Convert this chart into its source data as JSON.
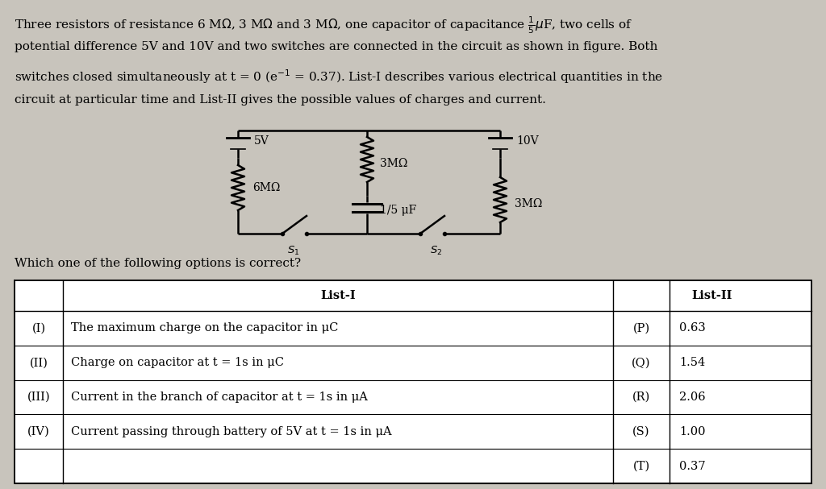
{
  "bg_color": "#c8c4bc",
  "text_color": "#000000",
  "question": "Which one of the following options is correct?",
  "table_header_list1": "List-I",
  "table_header_list2": "List-II",
  "table_rows": [
    {
      "roman": "(I)",
      "desc": "The maximum charge on the capacitor in μC",
      "letter": "(P)",
      "val": "0.63"
    },
    {
      "roman": "(II)",
      "desc": "Charge on capacitor at t = 1s in μC",
      "letter": "(Q)",
      "val": "1.54"
    },
    {
      "roman": "(III)",
      "desc": "Current in the branch of capacitor at t = 1s in μA",
      "letter": "(R)",
      "val": "2.06"
    },
    {
      "roman": "(IV)",
      "desc": "Current passing through battery of 5V at t = 1s in μA",
      "letter": "(S)",
      "val": "1.00"
    },
    {
      "roman": "",
      "desc": "",
      "letter": "(T)",
      "val": "0.37"
    }
  ],
  "para_line1a": "Three resistors of resistance 6 M",
  "para_line1b": ", 3 M",
  "para_line1c": " and 3 M",
  "para_line1d": ", one capacitor of capacitance ",
  "para_line1e": "μF, two cells of",
  "para_line2": "potential difference 5V and 10V and two switches are connected in the circuit as shown in figure. Both",
  "para_line3": "switches closed simultaneously at t = 0 (e",
  "para_line3b": " = 0.37). List-I describes various electrical quantities in the",
  "para_line4": "circuit at particular time and List-II gives the possible values of charges and current.",
  "font_size_para": 11,
  "font_size_table": 10.5,
  "font_size_circuit": 10
}
